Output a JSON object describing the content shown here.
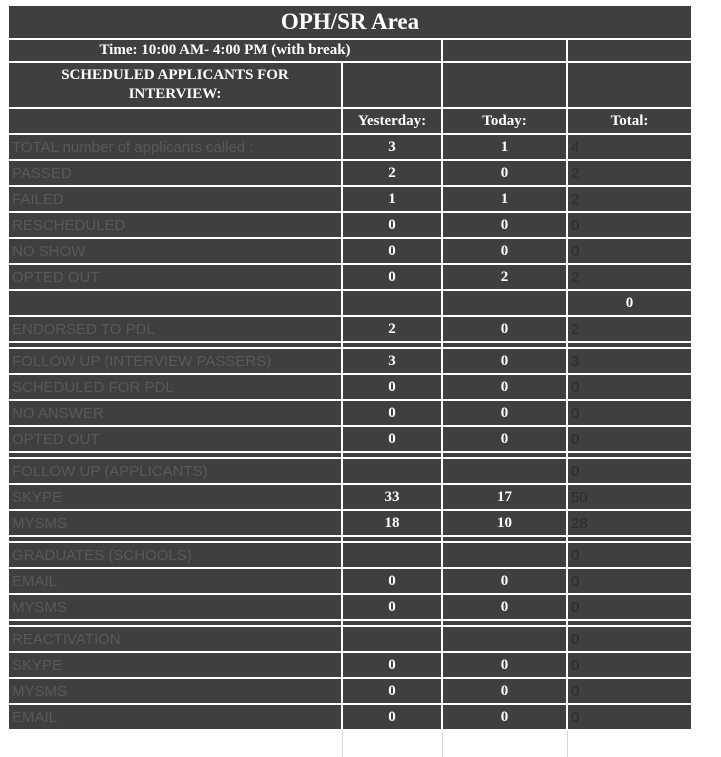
{
  "title": "OPH/SR Area",
  "time": {
    "label": "Time: 10:00 AM- 4:00 PM (with break)"
  },
  "section": {
    "title": "SCHEDULED APPLICANTS FOR INTERVIEW:"
  },
  "columns": {
    "yesterday": "Yesterday:",
    "today": "Today:",
    "total": "Total:"
  },
  "rows": [
    {
      "label": "TOTAL number of applicants called :",
      "yesterday": "3",
      "today": "1",
      "total": "4"
    },
    {
      "label": "PASSED",
      "yesterday": "2",
      "today": "0",
      "total": "2"
    },
    {
      "label": "FAILED",
      "yesterday": "1",
      "today": "1",
      "total": "2"
    },
    {
      "label": "RESCHEDULED",
      "yesterday": "0",
      "today": "0",
      "total": "0"
    },
    {
      "label": "NO SHOW",
      "yesterday": "0",
      "today": "0",
      "total": "0"
    },
    {
      "label": "OPTED OUT",
      "yesterday": "0",
      "today": "2",
      "total": "2"
    },
    {
      "label": "",
      "yesterday": "",
      "today": "",
      "total": "0",
      "total_white": true
    },
    {
      "label": "ENDORSED TO PDL",
      "yesterday": "2",
      "today": "0",
      "total": "2"
    },
    {
      "gap": true
    },
    {
      "label": "FOLLOW UP (INTERVIEW PASSERS)",
      "yesterday": "3",
      "today": "0",
      "total": "3"
    },
    {
      "label": "SCHEDULED FOR PDL",
      "yesterday": "0",
      "today": "0",
      "total": "0"
    },
    {
      "label": "NO ANSWER",
      "yesterday": "0",
      "today": "0",
      "total": "0"
    },
    {
      "label": "OPTED OUT",
      "yesterday": "0",
      "today": "0",
      "total": "0"
    },
    {
      "gap": true
    },
    {
      "label": "FOLLOW UP (APPLICANTS)",
      "yesterday": "",
      "today": "",
      "total": "0"
    },
    {
      "label": "SKYPE",
      "yesterday": "33",
      "today": "17",
      "total": "50"
    },
    {
      "label": "MYSMS",
      "yesterday": "18",
      "today": "10",
      "total": "28"
    },
    {
      "gap": true
    },
    {
      "label": "GRADUATES (SCHOOLS)",
      "yesterday": "",
      "today": "",
      "total": "0"
    },
    {
      "label": "EMAIL",
      "yesterday": "0",
      "today": "0",
      "total": "0"
    },
    {
      "label": "MYSMS",
      "yesterday": "0",
      "today": "0",
      "total": "0"
    },
    {
      "gap": true
    },
    {
      "label": "REACTIVATION",
      "yesterday": "",
      "today": "",
      "total": "0"
    },
    {
      "label": "SKYPE",
      "yesterday": "0",
      "today": "0",
      "total": "0"
    },
    {
      "label": "MYSMS",
      "yesterday": "0",
      "today": "0",
      "total": "0"
    },
    {
      "label": "EMAIL",
      "yesterday": "0",
      "today": "0",
      "total": "0"
    }
  ],
  "colors": {
    "cell_background": "#3f3f3f",
    "grid_lines": "#ffffff",
    "label_text": "#595959",
    "value_text": "#ffffff",
    "total_text": "#2b2b2b",
    "page_background": "#ffffff",
    "faint_guide_line": "#d9d9d9"
  }
}
